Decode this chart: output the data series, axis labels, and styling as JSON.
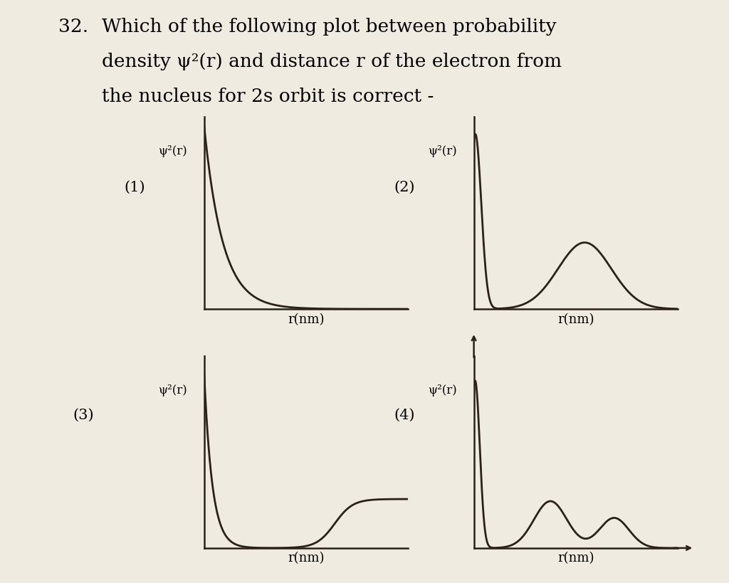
{
  "title_line1": "Which of the following plot between probability",
  "title_line2": "density ψ²(r) and distance r of the electron from",
  "title_line3": "the nucleus for 2s orbit is correct -",
  "question_num": "32.",
  "plots": [
    {
      "label": "(1)",
      "type": "exponential_decay",
      "ylabel": "ψ²(r)",
      "xlabel": "r(nm)"
    },
    {
      "label": "(2)",
      "type": "two_peaks_node",
      "ylabel": "ψ²(r)",
      "xlabel": "r(nm)"
    },
    {
      "label": "(3)",
      "type": "peak_then_rise",
      "ylabel": "ψ²(r)",
      "xlabel": "r(nm)"
    },
    {
      "label": "(4)",
      "type": "three_peaks",
      "ylabel": "ψ²(r)",
      "xlabel": "r(nm)"
    }
  ],
  "line_color": "#2a2218",
  "line_width": 2.0,
  "axis_color": "#2a2218",
  "page_bg": "#f0ebe0",
  "title_fontsize": 19,
  "label_fontsize": 15,
  "axis_label_fontsize": 13,
  "ylabel_fontsize": 12
}
